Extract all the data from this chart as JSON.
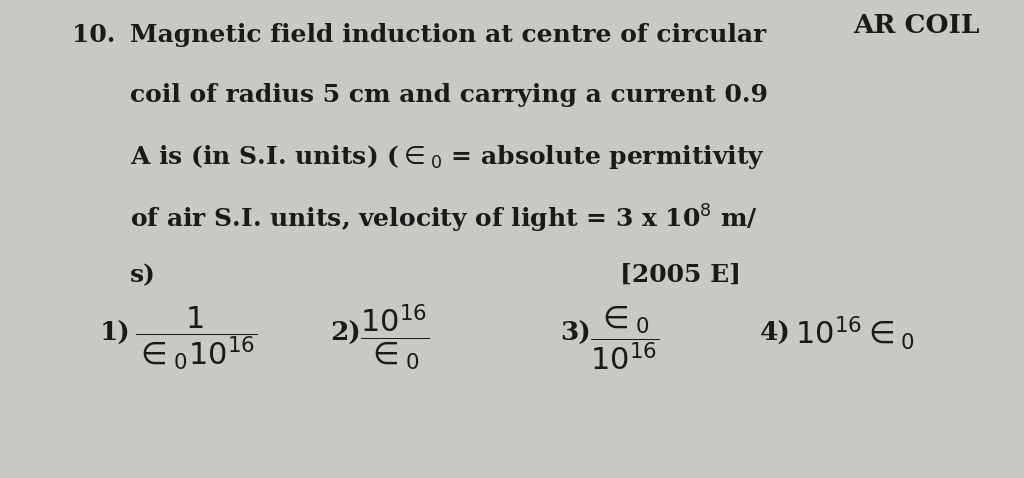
{
  "background_color": "#cac8c2",
  "title_top_right": "AR COIL",
  "text_color": "#1a1a1a",
  "font_size_q": 18,
  "font_size_opt": 19,
  "lines": [
    "Magnetic field induction at centre of circular",
    "coil of radius 5 cm and carrying a current 0.9",
    "A is (in S.I. units) ($\\in_0$ = absolute permitivity",
    "of air S.I. units, velocity of light = 3 x 10$^8$ m/",
    "s)"
  ],
  "q_num": "10.",
  "year": "[2005 E]",
  "opt1_num": "1)",
  "opt1_expr": "$\\dfrac{1}{\\in_0 10^{16}}$",
  "opt2_num": "2)",
  "opt2_expr": "$\\dfrac{10^{16}}{\\in_0}$",
  "opt3_num": "3)",
  "opt3_expr": "$\\dfrac{\\in_0}{10^{16}}$",
  "opt4_num": "4)",
  "opt4_expr": "$10^{16} \\in_0$"
}
